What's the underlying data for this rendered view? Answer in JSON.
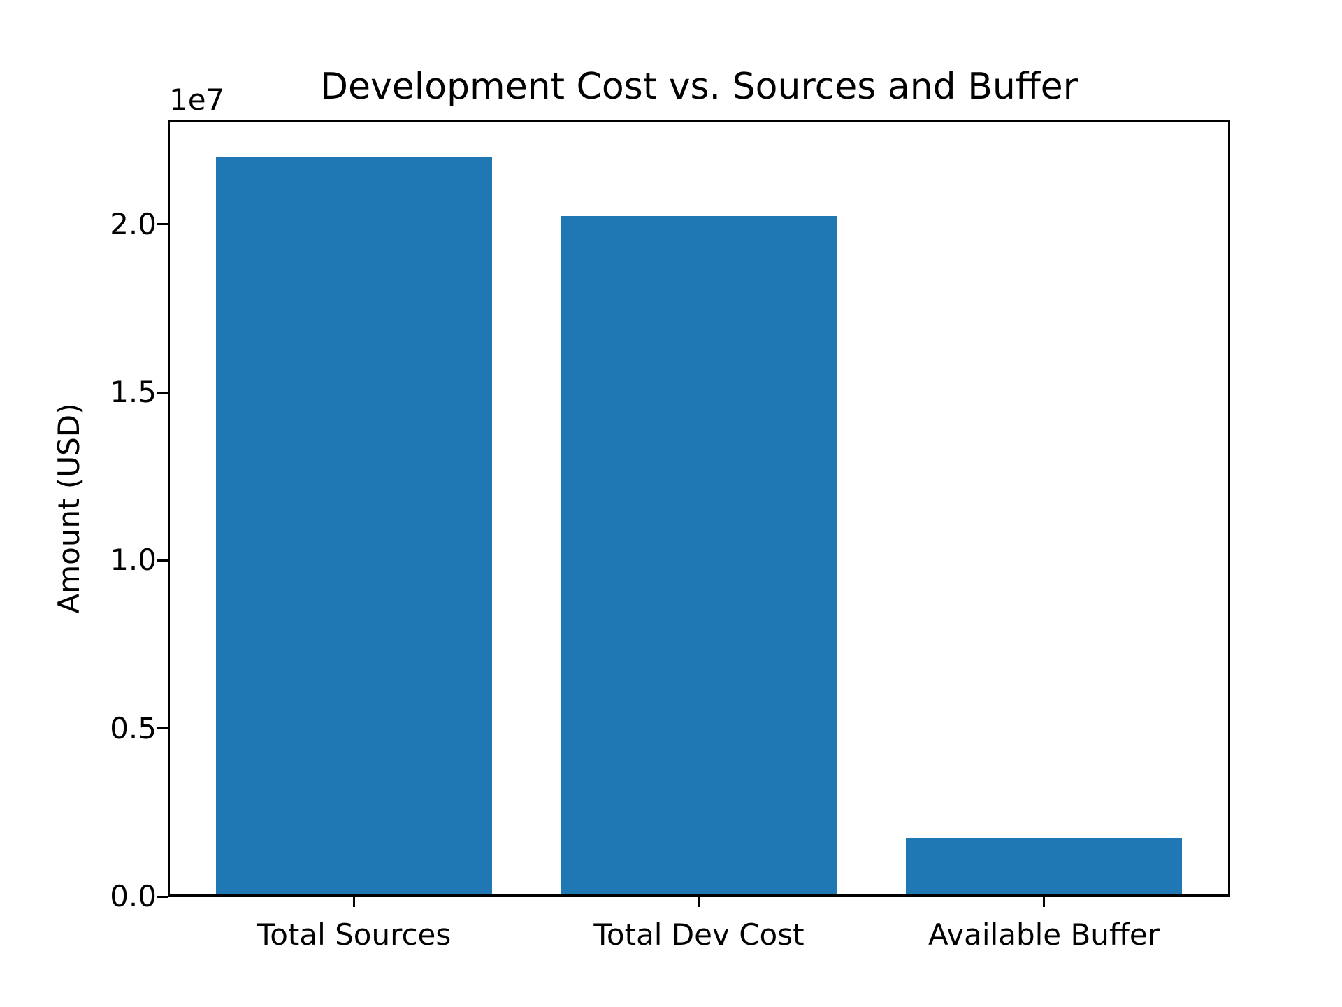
{
  "chart_data": {
    "type": "bar",
    "title": "Development Cost vs. Sources and Buffer",
    "xlabel": "",
    "ylabel": "Amount (USD)",
    "offset_text": "1e7",
    "categories": [
      "Total Sources",
      "Total Dev Cost",
      "Available Buffer"
    ],
    "values": [
      22000000,
      20250000,
      1750000
    ],
    "ylim": [
      0,
      23100000
    ],
    "yticks": [
      0,
      5000000,
      10000000,
      15000000,
      20000000
    ],
    "ytick_labels": [
      "0.0",
      "0.5",
      "1.0",
      "1.5",
      "2.0"
    ],
    "bar_color": "#1f77b4",
    "grid": false,
    "legend": "none",
    "background_color": "#ffffff"
  }
}
